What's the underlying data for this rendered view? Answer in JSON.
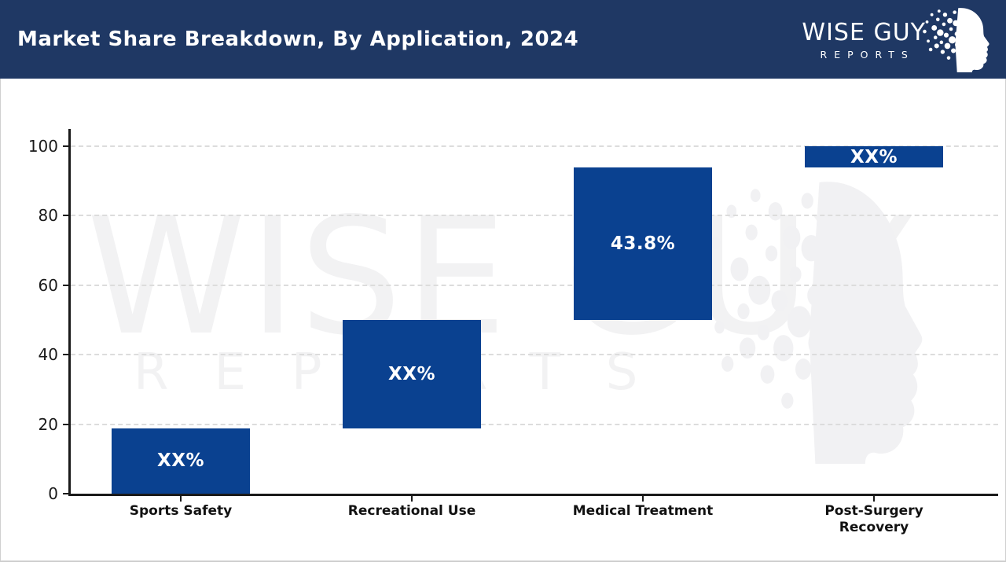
{
  "header": {
    "title": "Market Share Breakdown, By Application, 2024",
    "bg_color": "#1f3864",
    "logo_line1": "WISE GUY",
    "logo_line2": "REPORTS"
  },
  "watermark": {
    "line1": "WISE GUY",
    "line2": "REPORTS"
  },
  "chart_data": {
    "type": "bar",
    "subtype": "waterfall-floating-segments",
    "title": "Market Share Breakdown, By Application, 2024",
    "categories": [
      "Sports Safety",
      "Recreational Use",
      "Medical Treatment",
      "Post-Surgery Recovery"
    ],
    "category_lines": [
      [
        "Sports Safety"
      ],
      [
        "Recreational Use"
      ],
      [
        "Medical Treatment"
      ],
      [
        "Post-Surgery",
        "Recovery"
      ]
    ],
    "segments": [
      {
        "category": "Sports Safety",
        "start": 0,
        "end": 18.8,
        "value": 18.8,
        "label": "XX%"
      },
      {
        "category": "Recreational Use",
        "start": 18.8,
        "end": 50,
        "value": 31.2,
        "label": "XX%"
      },
      {
        "category": "Medical Treatment",
        "start": 50,
        "end": 93.8,
        "value": 43.8,
        "label": "43.8%"
      },
      {
        "category": "Post-Surgery Recovery",
        "start": 93.8,
        "end": 100,
        "value": 6.2,
        "label": "XX%"
      }
    ],
    "ylim": [
      0,
      100
    ],
    "yticks": [
      0,
      20,
      40,
      60,
      80,
      100
    ],
    "grid": "horizontal-dashed",
    "legend": "none",
    "bar_color": "#0a4190",
    "bar_label_color": "#ffffff",
    "axis_color": "#1a1a1a"
  }
}
